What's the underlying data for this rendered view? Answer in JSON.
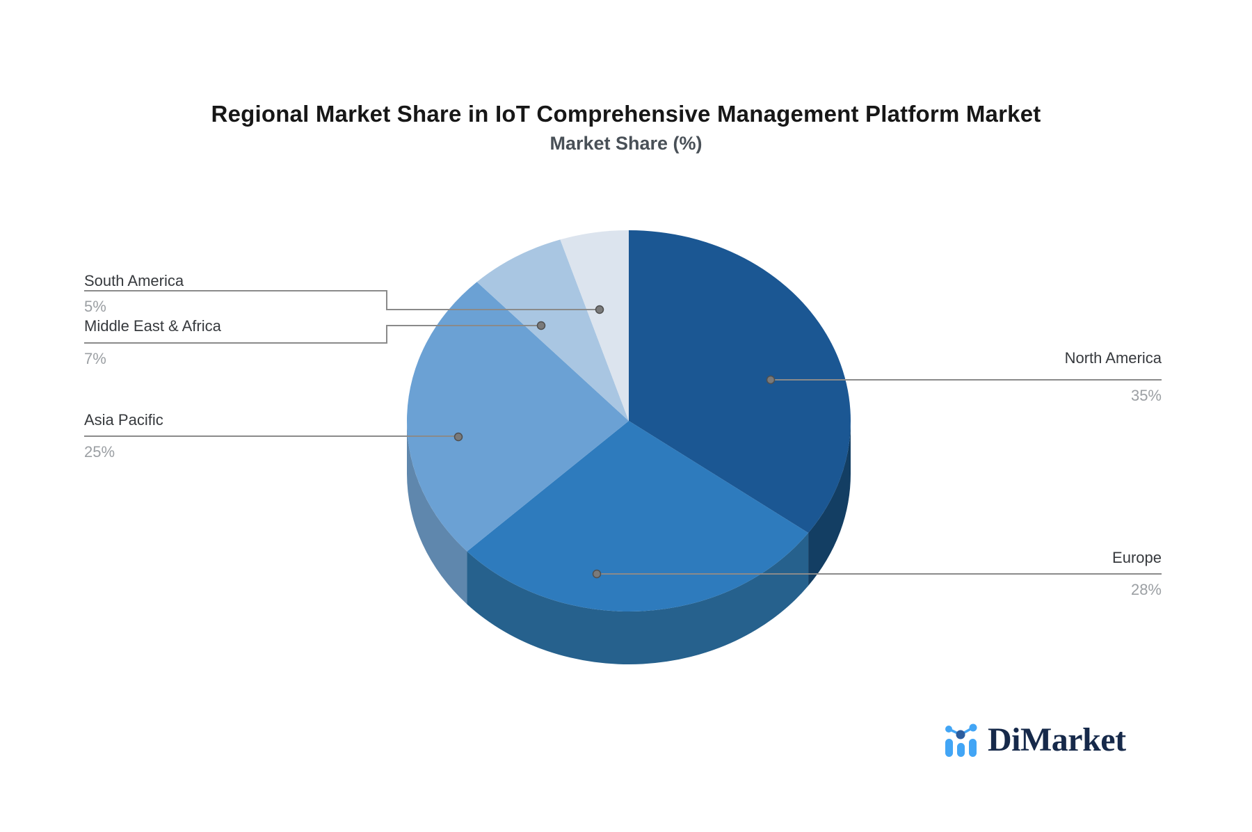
{
  "title": "Regional Market Share in IoT Comprehensive Management Platform Market",
  "subtitle": "Market Share (%)",
  "brand": {
    "name": "DiMarket"
  },
  "chart_data": {
    "type": "pie",
    "style": "3d",
    "title": "Regional Market Share in IoT Comprehensive Management Platform Market",
    "subtitle": "Market Share (%)",
    "unit": "%",
    "direction": "clockwise",
    "start_angle_deg": 0,
    "legend_position": "callout-labels",
    "series": [
      {
        "label": "North America",
        "value": 35,
        "display": "35%",
        "color": "#1b5793",
        "side_color": "#133e63"
      },
      {
        "label": "Europe",
        "value": 28,
        "display": "28%",
        "color": "#2e7bbd",
        "side_color": "#26618d"
      },
      {
        "label": "Asia Pacific",
        "value": 25,
        "display": "25%",
        "color": "#6ba1d4",
        "side_color": "#5f87ad"
      },
      {
        "label": "Middle East & Africa",
        "value": 7,
        "display": "7%",
        "color": "#a9c6e2",
        "side_color": "#8fb0d0"
      },
      {
        "label": "South America",
        "value": 5,
        "display": "5%",
        "color": "#dce4ee",
        "side_color": "#c3cfdd"
      }
    ],
    "leader_line_color": "#8a8a8a",
    "leader_dot_color": "#7a7a7a"
  }
}
